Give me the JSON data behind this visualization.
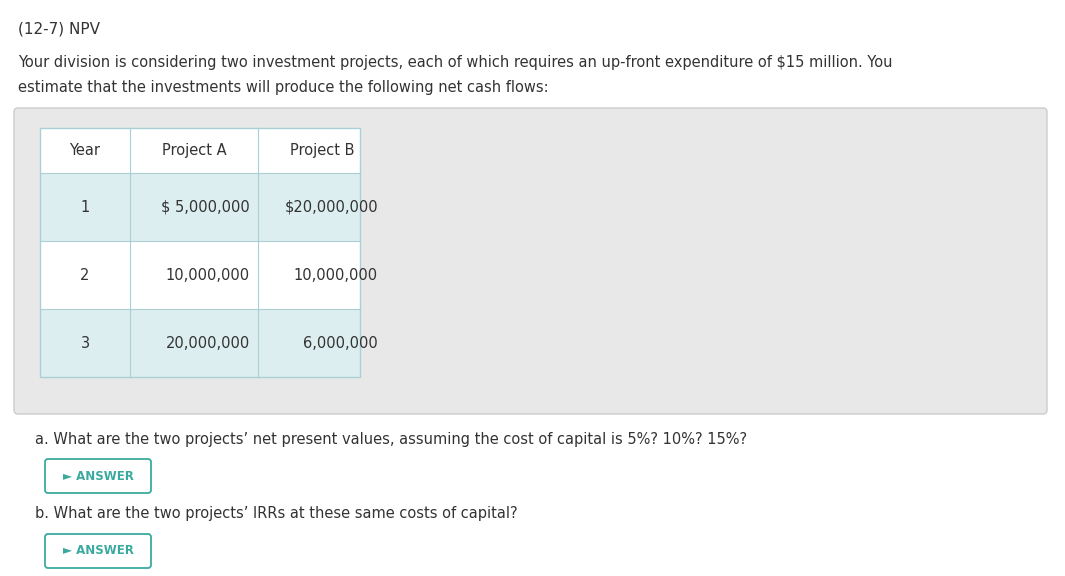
{
  "title": "(12-7) NPV",
  "intro_line1": "Your division is considering two investment projects, each of which requires an up-front expenditure of $15 million. You",
  "intro_line2": "estimate that the investments will produce the following net cash flows:",
  "table_headers": [
    "Year",
    "Project A",
    "Project B"
  ],
  "table_rows": [
    [
      "1",
      "$ 5,000,000",
      "$20,000,000"
    ],
    [
      "2",
      "10,000,000",
      "10,000,000"
    ],
    [
      "3",
      "20,000,000",
      "6,000,000"
    ]
  ],
  "question_a": "a. What are the two projects’ net present values, assuming the cost of capital is 5%? 10%? 15%?",
  "question_b": "b. What are the two projects’ IRRs at these same costs of capital?",
  "answer_btn_text": "► ANSWER",
  "bg_color": "#ffffff",
  "page_bg": "#f0f0f0",
  "table_outer_bg": "#e8e8e8",
  "table_outer_border": "#cccccc",
  "table_inner_bg": "#ffffff",
  "header_row_bg": "#ffffff",
  "data_row_bg_odd": "#ddeef0",
  "data_row_bg_even": "#ffffff",
  "cell_border_color": "#aacfd4",
  "text_color": "#333333",
  "title_fontsize": 11,
  "body_fontsize": 10.5,
  "table_fontsize": 10.5,
  "answer_btn_border": "#3aaa9e",
  "answer_btn_text_color": "#3aaa9e",
  "answer_btn_fontsize": 8.5
}
